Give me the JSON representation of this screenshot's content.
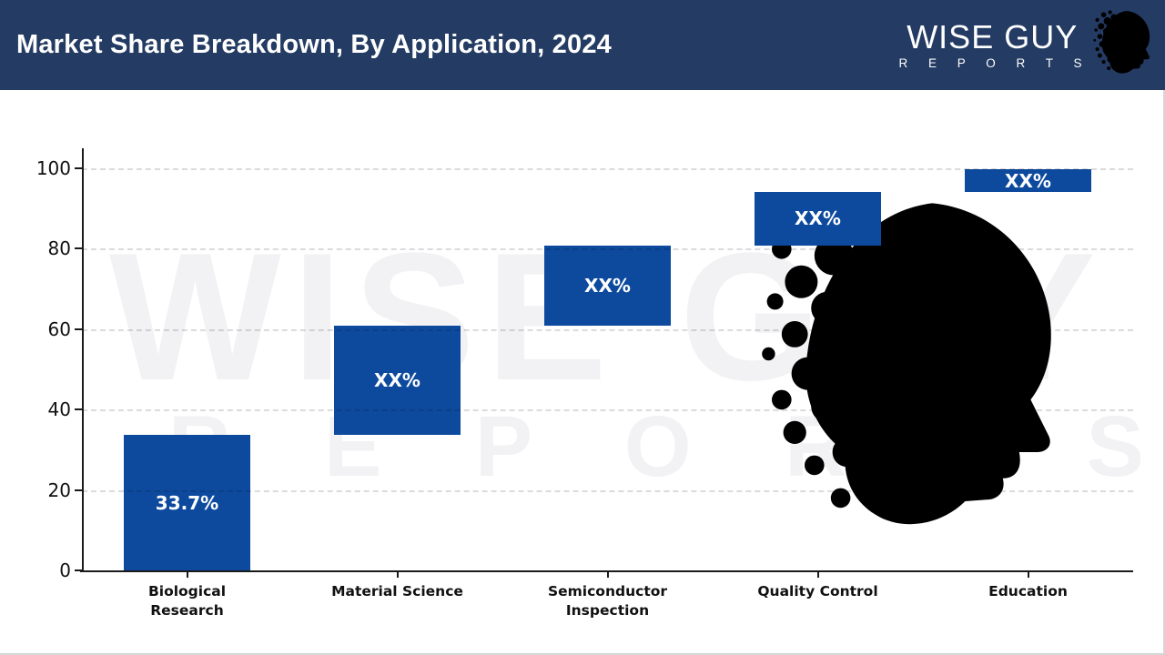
{
  "header": {
    "title": "Market Share Breakdown, By Application, 2024",
    "background_color": "#243b63",
    "logo": {
      "line1": "WISE GUY",
      "line2": "R E P O R T S"
    }
  },
  "watermark": {
    "line1": "WISE GUY",
    "line2": "R E P O R T S"
  },
  "chart_data": {
    "type": "bar",
    "subtype": "waterfall",
    "title": "Market Share Breakdown, By Application, 2024",
    "categories": [
      "Biological\nResearch",
      "Material Science",
      "Semiconductor\nInspection",
      "Quality Control",
      "Education"
    ],
    "segments": [
      {
        "start": 0,
        "end": 33.7
      },
      {
        "start": 33.7,
        "end": 60.8
      },
      {
        "start": 60.8,
        "end": 80.8
      },
      {
        "start": 80.8,
        "end": 94.2
      },
      {
        "start": 94.2,
        "end": 99.7
      }
    ],
    "bar_labels": [
      "33.7%",
      "XX%",
      "XX%",
      "XX%",
      "XX%"
    ],
    "yticks": [
      0,
      20,
      40,
      60,
      80,
      100
    ],
    "ylim": [
      0,
      105
    ],
    "unit": "%",
    "bar_color": "#0d4a9e",
    "bar_label_color": "#ffffff",
    "axis_color": "#1a1a1a",
    "grid": "horizontal-dashed",
    "legend": "none"
  }
}
